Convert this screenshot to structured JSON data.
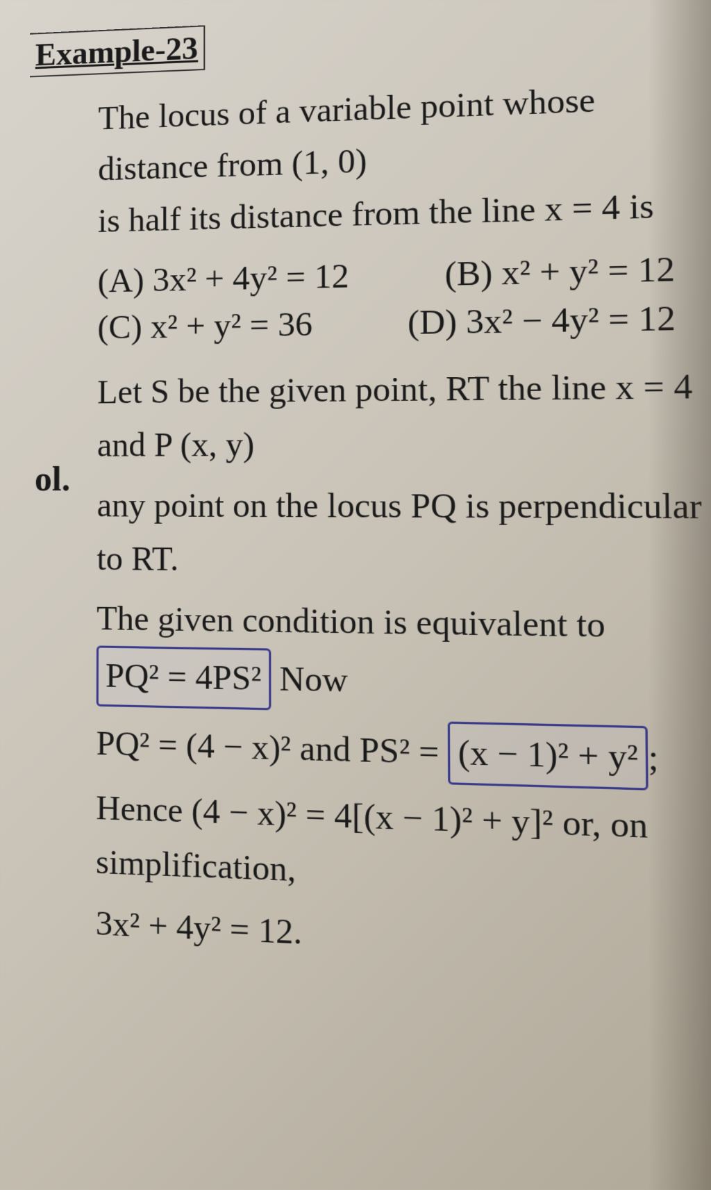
{
  "example": {
    "label": "Example-23",
    "question_line1": "The locus of a variable point whose distance from (1, 0)",
    "question_line2": "is half its distance from the line x = 4 is",
    "options": {
      "A": "(A) 3x² + 4y² = 12",
      "B": "(B) x² + y² = 12",
      "C": "(C) x² + y² = 36",
      "D": "(D) 3x² − 4y² = 12"
    }
  },
  "solution": {
    "label": "ol.",
    "line1": "Let S be the given point, RT the line x = 4 and P (x, y)",
    "line2": "any point on the locus PQ is perpendicular to RT.",
    "line3_a": "The given condition is equivalent to",
    "line3_box": "PQ² = 4PS²",
    "line3_b": "Now",
    "line4_a": "PQ² = (4 − x)² and PS² =",
    "line4_box": "(x − 1)² + y²",
    "line5": "Hence (4 − x)² = 4[(x − 1)² + y]² or, on simplification,",
    "line6": "3x² + 4y² = 12."
  },
  "style": {
    "bg_gradient_start": "#d8d4cc",
    "bg_gradient_end": "#b0a898",
    "text_color": "#1a1a1a",
    "box_border": "#3a3a8a",
    "main_fontsize": 48,
    "label_fontsize": 46
  }
}
